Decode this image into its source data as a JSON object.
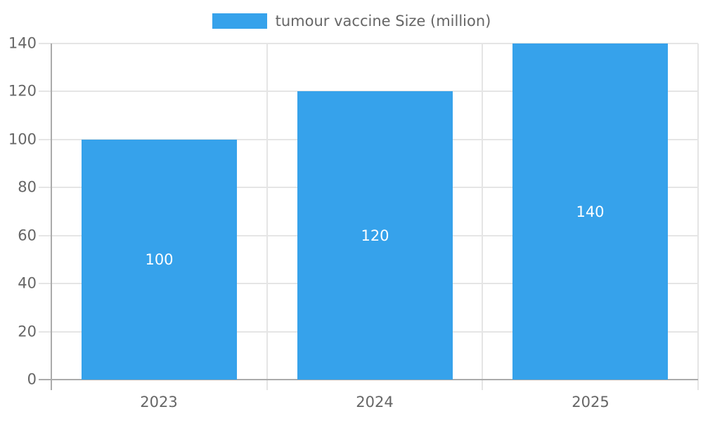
{
  "chart_data": {
    "type": "bar",
    "title": "",
    "legend": "tumour vaccine Size (million)",
    "legend_position": "top",
    "categories": [
      "2023",
      "2024",
      "2025"
    ],
    "series": [
      {
        "name": "tumour vaccine Size (million)",
        "values": [
          100,
          120,
          140
        ]
      }
    ],
    "value_labels": [
      "100",
      "120",
      "140"
    ],
    "xlabel": "",
    "ylabel": "",
    "ylim": [
      0,
      140
    ],
    "yticks": [
      0,
      20,
      40,
      60,
      80,
      100,
      120,
      140
    ],
    "ytick_labels": [
      "0",
      "20",
      "40",
      "60",
      "80",
      "100",
      "120",
      "140"
    ],
    "grid": true,
    "colors": {
      "bar": "#36A2EB",
      "tick_text": "#666666",
      "grid_line": "#E5E5E5",
      "axis_line": "#ABABAB",
      "value_label_text": "#FFFFFF",
      "background": "#FFFFFF"
    }
  }
}
